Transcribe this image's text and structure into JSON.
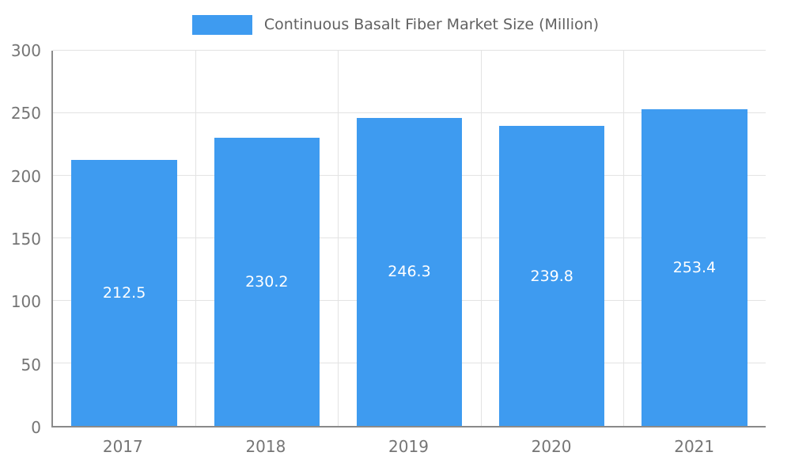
{
  "chart_data": {
    "type": "bar",
    "title": "Continuous Basalt Fiber Market Size (Million)",
    "categories": [
      "2017",
      "2018",
      "2019",
      "2020",
      "2021"
    ],
    "values": [
      212.5,
      230.2,
      246.3,
      239.8,
      253.4
    ],
    "yticks": [
      0,
      50,
      100,
      150,
      200,
      250,
      300
    ],
    "ylim": [
      0,
      300
    ],
    "xlabel": "",
    "ylabel": "",
    "bar_color": "#3E9BF0",
    "value_label_color": "#ffffff",
    "grid": "horizontal-and-vertical",
    "legend_position": "top-center"
  }
}
